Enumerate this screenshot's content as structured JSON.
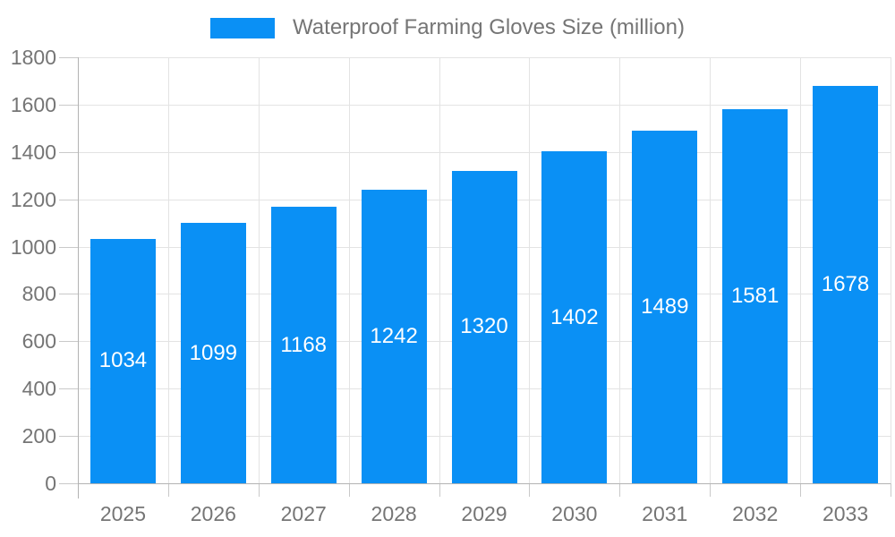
{
  "page": {
    "background_color": "#ffffff",
    "text_color": "#757575"
  },
  "legend": {
    "position": "top-center",
    "swatch_color": "#0a90f5",
    "label": "Waterproof Farming Gloves Size (million)"
  },
  "chart_data": {
    "type": "bar",
    "title": "Waterproof Farming Gloves Size (million)",
    "xlabel": "",
    "ylabel": "",
    "categories": [
      "2025",
      "2026",
      "2027",
      "2028",
      "2029",
      "2030",
      "2031",
      "2032",
      "2033"
    ],
    "series": [
      {
        "name": "Waterproof Farming Gloves Size (million)",
        "values": [
          1034,
          1099,
          1168,
          1242,
          1320,
          1402,
          1489,
          1581,
          1678
        ]
      }
    ],
    "value_labels_shown": true,
    "value_label_position": "inside-middle",
    "ylim": [
      0,
      1800
    ],
    "ytick_step": 200,
    "yticks": [
      0,
      200,
      400,
      600,
      800,
      1000,
      1200,
      1400,
      1600,
      1800
    ],
    "grid": true,
    "legend_position": "top",
    "colors": {
      "bar": "#0a90f5",
      "value_label": "#ffffff",
      "grid": "#e3e3e3",
      "axis": "#b3b3b3",
      "tick": "#c9c9c9",
      "text": "#757575"
    }
  }
}
